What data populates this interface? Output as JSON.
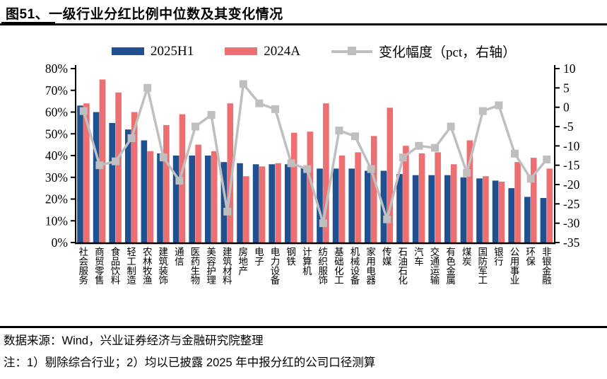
{
  "title": "图51、一级行业分红比例中位数及其变化情况",
  "legend": [
    {
      "label": "2025H1",
      "color": "#1F5191",
      "type": "bar"
    },
    {
      "label": "2024A",
      "color": "#ED6F72",
      "type": "bar"
    },
    {
      "label": "变化幅度（pct，右轴）",
      "color": "#BFBFBF",
      "type": "line"
    }
  ],
  "footer": {
    "source": "数据来源：Wind，兴业证券经济与金融研究院整理",
    "note": "注：1）剔除综合行业；2）均以已披露 2025 年中报分红的公司口径测算"
  },
  "chart_data": {
    "type": "bar",
    "title": "一级行业分红比例中位数及其变化情况",
    "categories": [
      "社会服务",
      "商贸零售",
      "食品饮料",
      "轻工制造",
      "农林牧渔",
      "建筑装饰",
      "通信",
      "医药生物",
      "美容护理",
      "建筑材料",
      "房地产",
      "电子",
      "电力设备",
      "钢铁",
      "计算机",
      "纺织服饰",
      "基础化工",
      "机械设备",
      "家用电器",
      "传媒",
      "石油石化",
      "汽车",
      "交通运输",
      "有色金属",
      "煤炭",
      "国防军工",
      "银行",
      "公用事业",
      "环保",
      "非银金融"
    ],
    "series": [
      {
        "name": "2025H1",
        "type": "bar",
        "axis": "left",
        "color": "#1F5191",
        "values": [
          63,
          60,
          55,
          52,
          47,
          41,
          40,
          40,
          40,
          37,
          36.5,
          36,
          36,
          36,
          35,
          34,
          34,
          34,
          33,
          33,
          31.5,
          31,
          31,
          31,
          30,
          29.5,
          28.5,
          25,
          21,
          20.5
        ]
      },
      {
        "name": "2024A",
        "type": "bar",
        "axis": "left",
        "color": "#ED6F72",
        "values": [
          64,
          75,
          69,
          60,
          42,
          54,
          59,
          45,
          42,
          64,
          30.5,
          35,
          36.5,
          50.5,
          51,
          64,
          40,
          41.5,
          49,
          62,
          44.5,
          41,
          41.5,
          36,
          47,
          30.5,
          28,
          37,
          39,
          34
        ]
      },
      {
        "name": "变化幅度（pct，右轴）",
        "type": "line",
        "axis": "right",
        "color": "#BFBFBF",
        "values": [
          -1,
          -15,
          -14,
          -8,
          5,
          -13,
          -19,
          -5,
          -2,
          -27,
          6,
          1,
          -0.5,
          -14.5,
          -16,
          -30,
          -6,
          -7.5,
          -16,
          -29,
          -13,
          -10,
          -10.5,
          -5,
          -17,
          -1,
          0.5,
          -12,
          -18.5,
          -13.5
        ]
      }
    ],
    "left_axis": {
      "min": 0,
      "max": 80,
      "step": 10,
      "format": "percent",
      "tick_labels": [
        "80%",
        "70%",
        "60%",
        "50%",
        "40%",
        "30%",
        "20%",
        "10%",
        "0%"
      ]
    },
    "right_axis": {
      "min": -35,
      "max": 10,
      "step": 5,
      "tick_labels": [
        "10",
        "5",
        "0",
        "-5",
        "-10",
        "-15",
        "-20",
        "-25",
        "-30",
        "-35"
      ]
    },
    "grid": false,
    "legend_position": "top",
    "xlabel": "",
    "ylabel": ""
  }
}
